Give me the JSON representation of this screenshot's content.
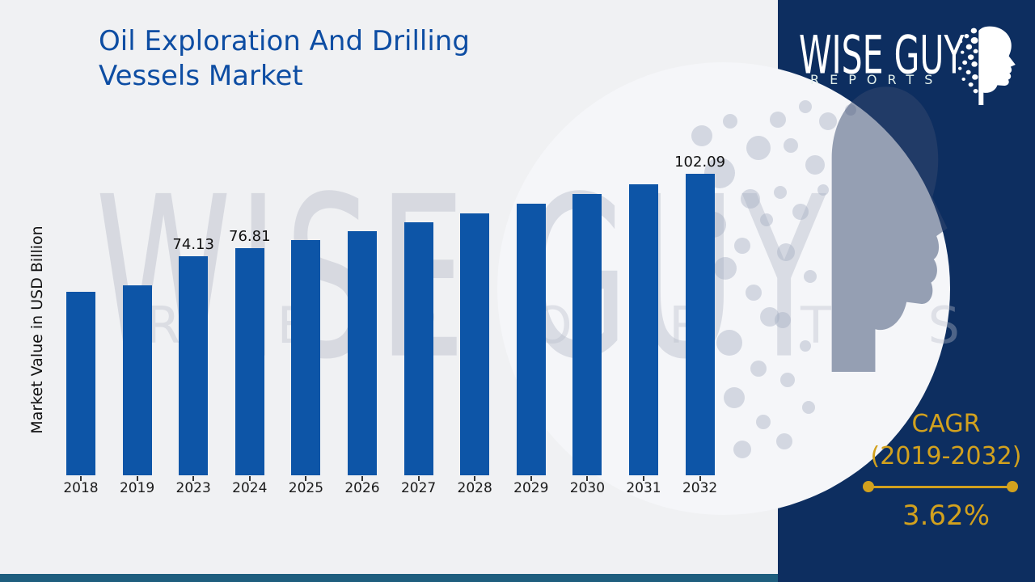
{
  "page": {
    "title_line1": "Oil Exploration And Drilling",
    "title_line2": "Vessels Market"
  },
  "logo": {
    "brand_line1": "WISE GUY",
    "brand_line2": "REPORTS"
  },
  "watermark": {
    "line1": "WISE GUY",
    "line2": "R E P O R T S"
  },
  "cagr": {
    "label_line1": "CAGR",
    "label_line2": "(2019-2032)",
    "value": "3.62%"
  },
  "colors": {
    "background": "#f0f1f3",
    "brand_navy": "#0d2e60",
    "bar_blue": "#0d55a7",
    "title_blue": "#0d4da3",
    "accent_gold": "#d2a11e",
    "footer_teal": "#1e5e7e"
  },
  "chart_data": {
    "type": "bar",
    "title": "Oil Exploration And Drilling Vessels Market",
    "xlabel": "",
    "ylabel": "Market Value in USD Billion",
    "categories": [
      "2018",
      "2019",
      "2023",
      "2024",
      "2025",
      "2026",
      "2027",
      "2028",
      "2029",
      "2030",
      "2031",
      "2032"
    ],
    "values": [
      62.05,
      64.3,
      74.13,
      76.81,
      79.59,
      82.47,
      85.46,
      88.55,
      91.76,
      95.08,
      98.52,
      102.09
    ],
    "data_labels": {
      "2023": "74.13",
      "2024": "76.81",
      "2032": "102.09"
    },
    "ylim": [
      0,
      110
    ],
    "grid": false,
    "legend": null
  }
}
